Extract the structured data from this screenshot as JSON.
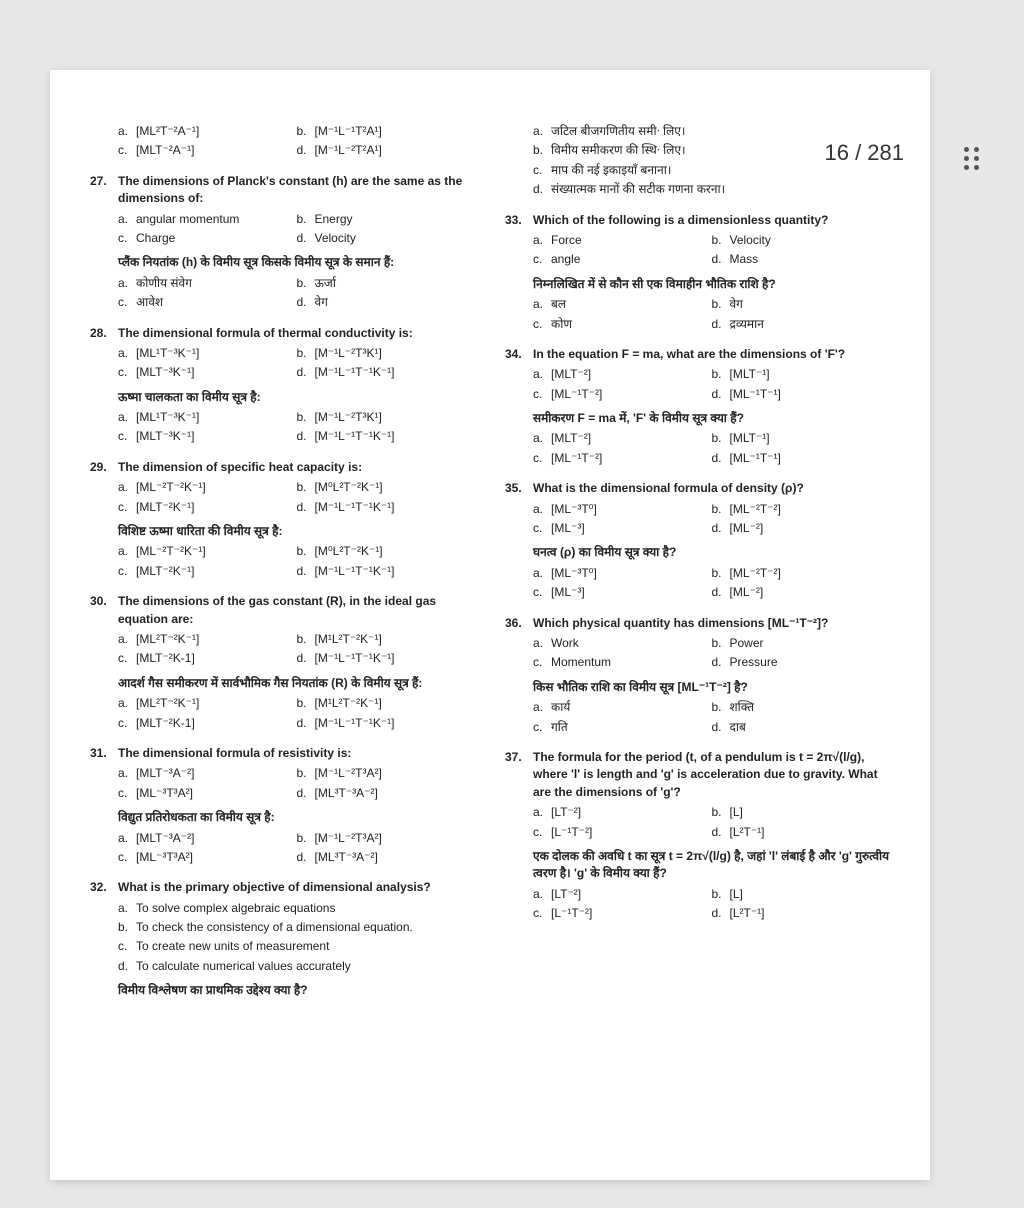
{
  "pageCounter": "16 / 281",
  "left": [
    {
      "num": "",
      "text": "",
      "opts": [
        {
          "l": "a.",
          "t": "[ML²T⁻²A⁻¹]"
        },
        {
          "l": "b.",
          "t": "[M⁻¹L⁻¹T²A¹]"
        },
        {
          "l": "c.",
          "t": "[MLT⁻²A⁻¹]"
        },
        {
          "l": "d.",
          "t": "[M⁻¹L⁻²T²A¹]"
        }
      ]
    },
    {
      "num": "27.",
      "text": "The dimensions of Planck's constant (h) are the same as the dimensions of:",
      "opts": [
        {
          "l": "a.",
          "t": "angular momentum"
        },
        {
          "l": "b.",
          "t": "Energy"
        },
        {
          "l": "c.",
          "t": "Charge"
        },
        {
          "l": "d.",
          "t": "Velocity"
        }
      ],
      "sub": "प्लैंक नियतांक (h) के विमीय सूत्र किसके विमीय सूत्र के समान हैं:",
      "subopts": [
        {
          "l": "a.",
          "t": "कोणीय संवेग"
        },
        {
          "l": "b.",
          "t": "ऊर्जा"
        },
        {
          "l": "c.",
          "t": "आवेश"
        },
        {
          "l": "d.",
          "t": "वेग"
        }
      ]
    },
    {
      "num": "28.",
      "text": "The dimensional formula of thermal conductivity is:",
      "opts": [
        {
          "l": "a.",
          "t": "[ML¹T⁻³K⁻¹]"
        },
        {
          "l": "b.",
          "t": "[M⁻¹L⁻²T³K¹]"
        },
        {
          "l": "c.",
          "t": "[MLT⁻³K⁻¹]"
        },
        {
          "l": "d.",
          "t": "[M⁻¹L⁻¹T⁻¹K⁻¹]"
        }
      ],
      "sub": "ऊष्मा चालकता का विमीय सूत्र है:",
      "subopts": [
        {
          "l": "a.",
          "t": "[ML¹T⁻³K⁻¹]"
        },
        {
          "l": "b.",
          "t": "[M⁻¹L⁻²T³K¹]"
        },
        {
          "l": "c.",
          "t": "[MLT⁻³K⁻¹]"
        },
        {
          "l": "d.",
          "t": "[M⁻¹L⁻¹T⁻¹K⁻¹]"
        }
      ]
    },
    {
      "num": "29.",
      "text": "The dimension of specific heat capacity is:",
      "opts": [
        {
          "l": "a.",
          "t": "[ML⁻²T⁻²K⁻¹]"
        },
        {
          "l": "b.",
          "t": "[M⁰L²T⁻²K⁻¹]"
        },
        {
          "l": "c.",
          "t": "[MLT⁻²K⁻¹]"
        },
        {
          "l": "d.",
          "t": "[M⁻¹L⁻¹T⁻¹K⁻¹]"
        }
      ],
      "sub": "विशिष्ट ऊष्मा धारिता की विमीय सूत्र है:",
      "subopts": [
        {
          "l": "a.",
          "t": "[ML⁻²T⁻²K⁻¹]"
        },
        {
          "l": "b.",
          "t": "[M⁰L²T⁻²K⁻¹]"
        },
        {
          "l": "c.",
          "t": "[MLT⁻²K⁻¹]"
        },
        {
          "l": "d.",
          "t": "[M⁻¹L⁻¹T⁻¹K⁻¹]"
        }
      ]
    },
    {
      "num": "30.",
      "text": "The dimensions of the gas constant (R), in the ideal gas equation are:",
      "opts": [
        {
          "l": "a.",
          "t": "[ML²T⁻²K⁻¹]"
        },
        {
          "l": "b.",
          "t": "[M¹L²T⁻²K⁻¹]"
        },
        {
          "l": "c.",
          "t": "[MLT⁻²K-1]"
        },
        {
          "l": "d.",
          "t": "[M⁻¹L⁻¹T⁻¹K⁻¹]"
        }
      ],
      "sub": "आदर्श गैस समीकरण में सार्वभौमिक गैस नियतांक (R) के विमीय सूत्र हैं:",
      "subopts": [
        {
          "l": "a.",
          "t": "[ML²T⁻²K⁻¹]"
        },
        {
          "l": "b.",
          "t": "[M¹L²T⁻²K⁻¹]"
        },
        {
          "l": "c.",
          "t": "[MLT⁻²K-1]"
        },
        {
          "l": "d.",
          "t": "[M⁻¹L⁻¹T⁻¹K⁻¹]"
        }
      ]
    },
    {
      "num": "31.",
      "text": "The dimensional formula of resistivity is:",
      "opts": [
        {
          "l": "a.",
          "t": "[MLT⁻³A⁻²]"
        },
        {
          "l": "b.",
          "t": "[M⁻¹L⁻²T³A²]"
        },
        {
          "l": "c.",
          "t": "[ML⁻³T³A²]"
        },
        {
          "l": "d.",
          "t": "[ML³T⁻³A⁻²]"
        }
      ],
      "sub": "विद्युत प्रतिरोधकता का विमीय सूत्र है:",
      "subopts": [
        {
          "l": "a.",
          "t": "[MLT⁻³A⁻²]"
        },
        {
          "l": "b.",
          "t": "[M⁻¹L⁻²T³A²]"
        },
        {
          "l": "c.",
          "t": "[ML⁻³T³A²]"
        },
        {
          "l": "d.",
          "t": "[ML³T⁻³A⁻²]"
        }
      ]
    },
    {
      "num": "32.",
      "text": "What is the primary objective of dimensional analysis?",
      "opts": [
        {
          "l": "a.",
          "t": "To solve complex algebraic equations"
        },
        {
          "l": "b.",
          "t": "To check the consistency of a dimensional equation."
        },
        {
          "l": "c.",
          "t": "To create new units of measurement"
        },
        {
          "l": "d.",
          "t": "To calculate numerical values accurately"
        }
      ],
      "sub": "विमीय विश्लेषण का प्राथमिक उद्देश्य क्या है?"
    }
  ],
  "right": [
    {
      "num": "",
      "text": "",
      "opts": [
        {
          "l": "a.",
          "t": "जटिल बीजगणितीय समीᐧ लिए।"
        },
        {
          "l": "b.",
          "t": "विमीय समीकरण की स्थिᐧ लिए।"
        },
        {
          "l": "c.",
          "t": "माप की नई इकाइयाँ बनाना।"
        },
        {
          "l": "d.",
          "t": "संख्यात्मक मानों की सटीक गणना करना।"
        }
      ]
    },
    {
      "num": "33.",
      "text": "Which of the following is a dimensionless quantity?",
      "opts": [
        {
          "l": "a.",
          "t": "Force"
        },
        {
          "l": "b.",
          "t": "Velocity"
        },
        {
          "l": "c.",
          "t": "angle"
        },
        {
          "l": "d.",
          "t": "Mass"
        }
      ],
      "sub": "निम्नलिखित में से कौन सी एक विमाहीन भौतिक राशि है?",
      "subopts": [
        {
          "l": "a.",
          "t": "बल"
        },
        {
          "l": "b.",
          "t": "वेग"
        },
        {
          "l": "c.",
          "t": "कोण"
        },
        {
          "l": "d.",
          "t": "द्रव्यमान"
        }
      ]
    },
    {
      "num": "34.",
      "text": "In the equation F = ma, what are the dimensions of 'F'?",
      "opts": [
        {
          "l": "a.",
          "t": "[MLT⁻²]"
        },
        {
          "l": "b.",
          "t": "[MLT⁻¹]"
        },
        {
          "l": "c.",
          "t": "[ML⁻¹T⁻²]"
        },
        {
          "l": "d.",
          "t": "[ML⁻¹T⁻¹]"
        }
      ],
      "sub": "समीकरण F = ma में, 'F' के विमीय सूत्र क्या हैं?",
      "subopts": [
        {
          "l": "a.",
          "t": "[MLT⁻²]"
        },
        {
          "l": "b.",
          "t": "[MLT⁻¹]"
        },
        {
          "l": "c.",
          "t": "[ML⁻¹T⁻²]"
        },
        {
          "l": "d.",
          "t": "[ML⁻¹T⁻¹]"
        }
      ]
    },
    {
      "num": "35.",
      "text": "What is the dimensional formula of density (ρ)?",
      "opts": [
        {
          "l": "a.",
          "t": "[ML⁻³T⁰]"
        },
        {
          "l": "b.",
          "t": "[ML⁻²T⁻²]"
        },
        {
          "l": "c.",
          "t": "[ML⁻³]"
        },
        {
          "l": "d.",
          "t": "[ML⁻²]"
        }
      ],
      "sub": "घनत्व (ρ) का विमीय सूत्र क्या है?",
      "subopts": [
        {
          "l": "a.",
          "t": "[ML⁻³T⁰]"
        },
        {
          "l": "b.",
          "t": "[ML⁻²T⁻²]"
        },
        {
          "l": "c.",
          "t": "[ML⁻³]"
        },
        {
          "l": "d.",
          "t": "[ML⁻²]"
        }
      ]
    },
    {
      "num": "36.",
      "text": "Which physical quantity has dimensions [ML⁻¹T⁻²]?",
      "opts": [
        {
          "l": "a.",
          "t": "Work"
        },
        {
          "l": "b.",
          "t": "Power"
        },
        {
          "l": "c.",
          "t": "Momentum"
        },
        {
          "l": "d.",
          "t": "Pressure"
        }
      ],
      "sub": "किस भौतिक राशि का विमीय सूत्र [ML⁻¹T⁻²] है?",
      "subopts": [
        {
          "l": "a.",
          "t": "कार्य"
        },
        {
          "l": "b.",
          "t": "शक्ति"
        },
        {
          "l": "c.",
          "t": "गति"
        },
        {
          "l": "d.",
          "t": "दाब"
        }
      ]
    },
    {
      "num": "37.",
      "text": "The formula for the period (t, of a pendulum is t = 2π√(l/g), where 'l' is length and 'g' is acceleration due to gravity. What are the dimensions of 'g'?",
      "opts": [
        {
          "l": "a.",
          "t": "[LT⁻²]"
        },
        {
          "l": "b.",
          "t": "[L]"
        },
        {
          "l": "c.",
          "t": "[L⁻¹T⁻²]"
        },
        {
          "l": "d.",
          "t": "[L²T⁻¹]"
        }
      ],
      "sub": "एक दोलक की अवधि t का सूत्र t = 2π√(l/g) है, जहां 'l' लंबाई है और 'g' गुरुत्वीय त्वरण है। 'g' के विमीय क्या हैं?",
      "subopts": [
        {
          "l": "a.",
          "t": "[LT⁻²]"
        },
        {
          "l": "b.",
          "t": "[L]"
        },
        {
          "l": "c.",
          "t": "[L⁻¹T⁻²]"
        },
        {
          "l": "d.",
          "t": "[L²T⁻¹]"
        }
      ]
    }
  ]
}
